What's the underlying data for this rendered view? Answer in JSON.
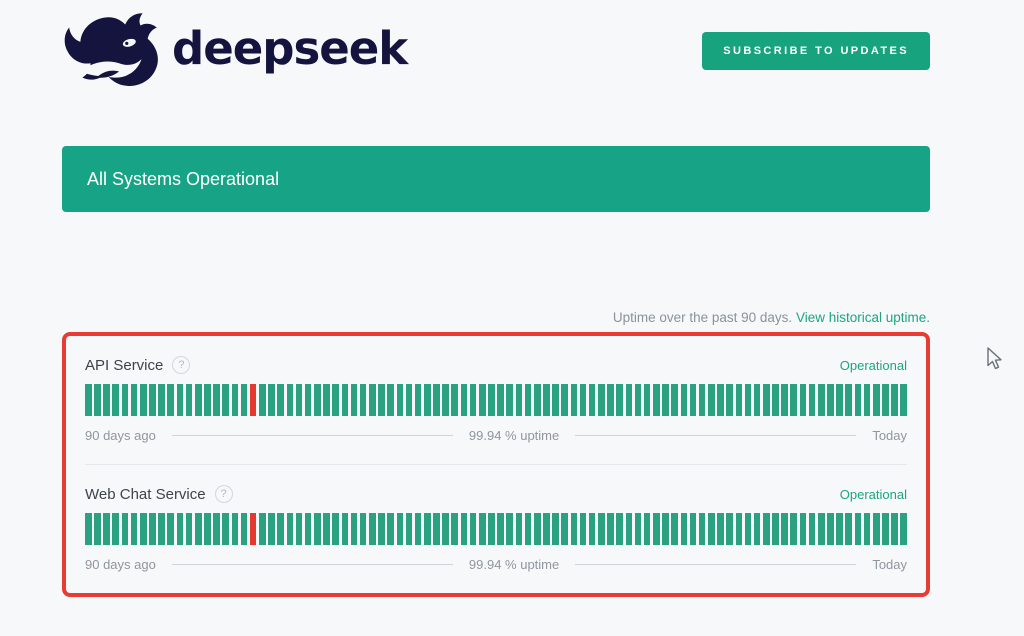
{
  "colors": {
    "accent_green": "#17a385",
    "button_green": "#17a37e",
    "bar_green": "#2aa181",
    "bar_red": "#e23b2e",
    "annotation_red": "#e83b33",
    "logo_navy": "#14143f",
    "page_bg": "#f6f8fa"
  },
  "header": {
    "logo_text": "deepseek",
    "subscribe_button_label": "SUBSCRIBE TO UPDATES"
  },
  "status_banner": {
    "text": "All Systems Operational"
  },
  "uptime_note": {
    "text": "Uptime over the past 90 days. ",
    "link_text": "View historical uptime."
  },
  "services": [
    {
      "name": "API Service",
      "help_icon": "?",
      "status": "Operational",
      "bars_total": 90,
      "down_day_index": 18,
      "left_label": "90 days ago",
      "center_label": "99.94 % uptime",
      "right_label": "Today"
    },
    {
      "name": "Web Chat Service",
      "help_icon": "?",
      "status": "Operational",
      "bars_total": 90,
      "down_day_index": 18,
      "left_label": "90 days ago",
      "center_label": "99.94 % uptime",
      "right_label": "Today"
    }
  ]
}
